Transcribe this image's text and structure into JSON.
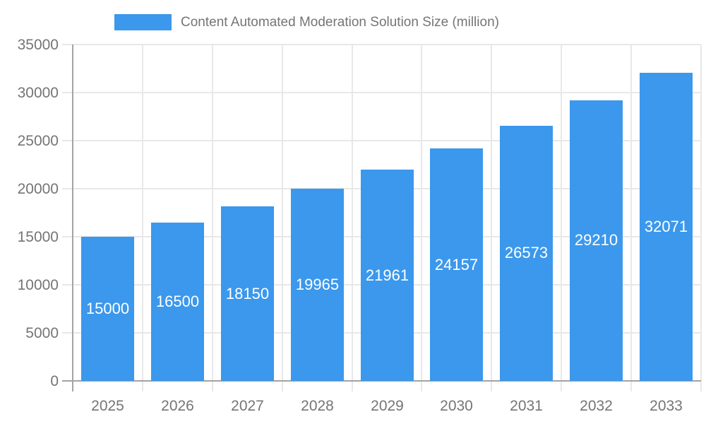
{
  "legend": {
    "label": "Content Automated Moderation Solution Size (million)"
  },
  "colors": {
    "bar": "#3b98ec",
    "grid": "#e8e8e8",
    "axis": "#a3a3a3",
    "tick_text": "#757575",
    "value_label": "#ffffff"
  },
  "chart_data": {
    "type": "bar",
    "title": "Content Automated Moderation Solution Size (million)",
    "categories": [
      "2025",
      "2026",
      "2027",
      "2028",
      "2029",
      "2030",
      "2031",
      "2032",
      "2033"
    ],
    "values": [
      15000,
      16500,
      18150,
      19965,
      21961,
      24157,
      26573,
      29210,
      32071
    ],
    "xlabel": "",
    "ylabel": "",
    "ylim": [
      0,
      35000
    ],
    "ytick_interval": 5000,
    "yticks": [
      0,
      5000,
      10000,
      15000,
      20000,
      25000,
      30000,
      35000
    ],
    "grid": true,
    "legend_position": "top",
    "bar_labels": "inside-center-white"
  }
}
